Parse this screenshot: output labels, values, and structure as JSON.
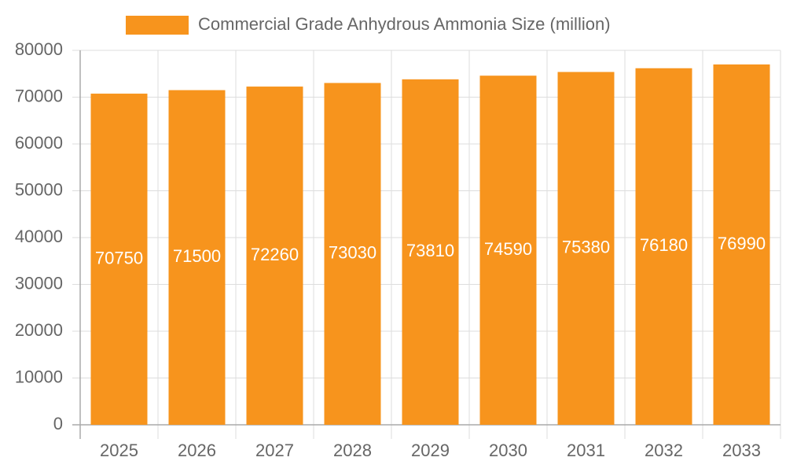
{
  "chart_data": {
    "type": "bar",
    "categories": [
      "2025",
      "2026",
      "2027",
      "2028",
      "2029",
      "2030",
      "2031",
      "2032",
      "2033"
    ],
    "series": [
      {
        "name": "Commercial Grade Anhydrous Ammonia Size (million)",
        "color": "#f7941d",
        "values": [
          70750,
          71500,
          72260,
          73030,
          73810,
          74590,
          75380,
          76180,
          76990
        ]
      }
    ],
    "ylim": [
      0,
      80000
    ],
    "yticks": [
      0,
      10000,
      20000,
      30000,
      40000,
      50000,
      60000,
      70000,
      80000
    ],
    "grid": true,
    "legend": "top"
  }
}
